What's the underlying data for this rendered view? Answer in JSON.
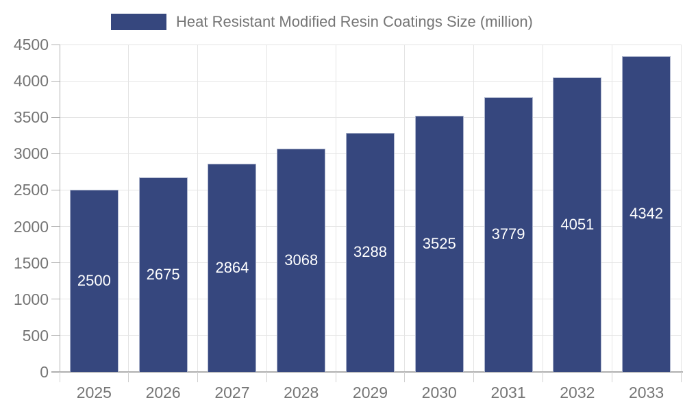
{
  "chart_data": {
    "type": "bar",
    "title": "Heat Resistant Modified Resin Coatings Size (million)",
    "categories": [
      "2025",
      "2026",
      "2027",
      "2028",
      "2029",
      "2030",
      "2031",
      "2032",
      "2033"
    ],
    "values": [
      2500,
      2675,
      2864,
      3068,
      3288,
      3525,
      3779,
      4051,
      4342
    ],
    "bar_labels": [
      "2500",
      "2675",
      "2864",
      "3068",
      "3288",
      "3525",
      "3779",
      "4051",
      "4342"
    ],
    "xlabel": "",
    "ylabel": "",
    "ylim": [
      0,
      4500
    ],
    "ytick_step": 500,
    "ytick_labels": [
      "0",
      "500",
      "1000",
      "1500",
      "2000",
      "2500",
      "3000",
      "3500",
      "4000",
      "4500"
    ],
    "grid": true,
    "legend_position": "top-center",
    "colors": {
      "bar": "#36477E",
      "bar_edge": "#AEB6CD",
      "bar_label": "#FFFFFF",
      "grid": "#E4E4E4",
      "axis": "#AFAFAF",
      "tick": "#D0D0D0",
      "text": "#757575"
    }
  }
}
